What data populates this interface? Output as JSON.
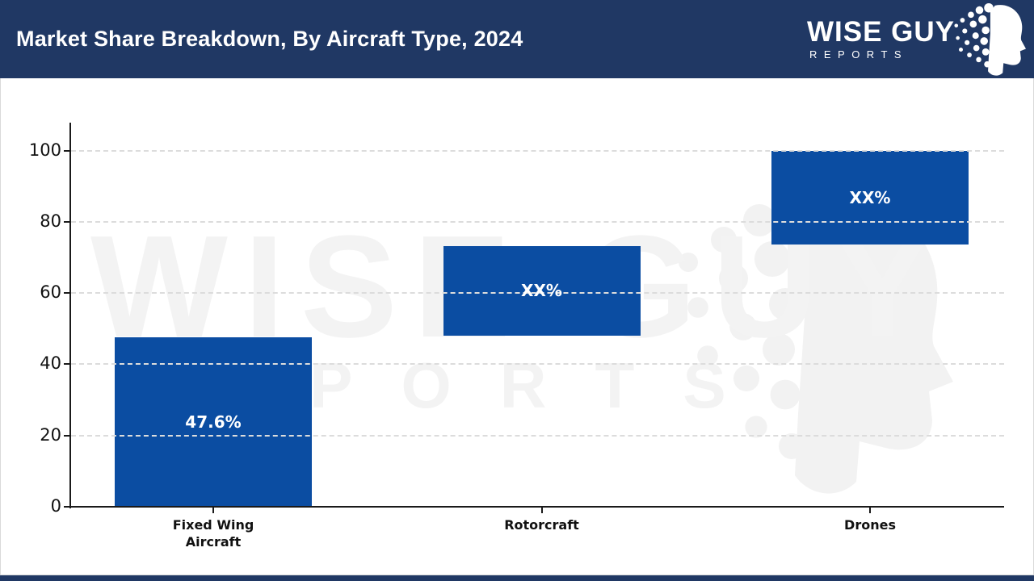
{
  "header": {
    "title": "Market Share Breakdown, By Aircraft Type, 2024",
    "brand": {
      "name": "WISE GUY",
      "tagline": "REPORTS"
    }
  },
  "watermark": {
    "line1": "WISE GUY",
    "line2": "REPORTS"
  },
  "chart_data": {
    "type": "bar",
    "subtype": "floating-segment percentage breakdown (waterfall style)",
    "title": "Market Share Breakdown, By Aircraft Type, 2024",
    "categories": [
      "Fixed Wing Aircraft",
      "Rotorcraft",
      "Drones"
    ],
    "category_label_lines": [
      [
        "Fixed Wing",
        "Aircraft"
      ],
      [
        "Rotorcraft"
      ],
      [
        "Drones"
      ]
    ],
    "segments": [
      {
        "category": "Fixed Wing Aircraft",
        "from": 0,
        "to": 47.6,
        "label": "47.6%"
      },
      {
        "category": "Rotorcraft",
        "from": 48.1,
        "to": 73.2,
        "label": "XX%"
      },
      {
        "category": "Drones",
        "from": 73.5,
        "to": 100,
        "label": "XX%"
      }
    ],
    "xlabel": "",
    "ylabel": "",
    "ylim": [
      0,
      100
    ],
    "yticks": [
      0,
      20,
      40,
      60,
      80,
      100
    ],
    "grid": "horizontal dashed",
    "legend": "none",
    "bar_color": "#0b4da2"
  },
  "colors": {
    "header_bg": "#203864",
    "footer_bg": "#203864",
    "bar": "#0b4da2",
    "gridline": "#dcdcdc",
    "axis": "#1a1a1a",
    "watermark": "#f3f3f3",
    "bar_label_text": "#ffffff"
  }
}
